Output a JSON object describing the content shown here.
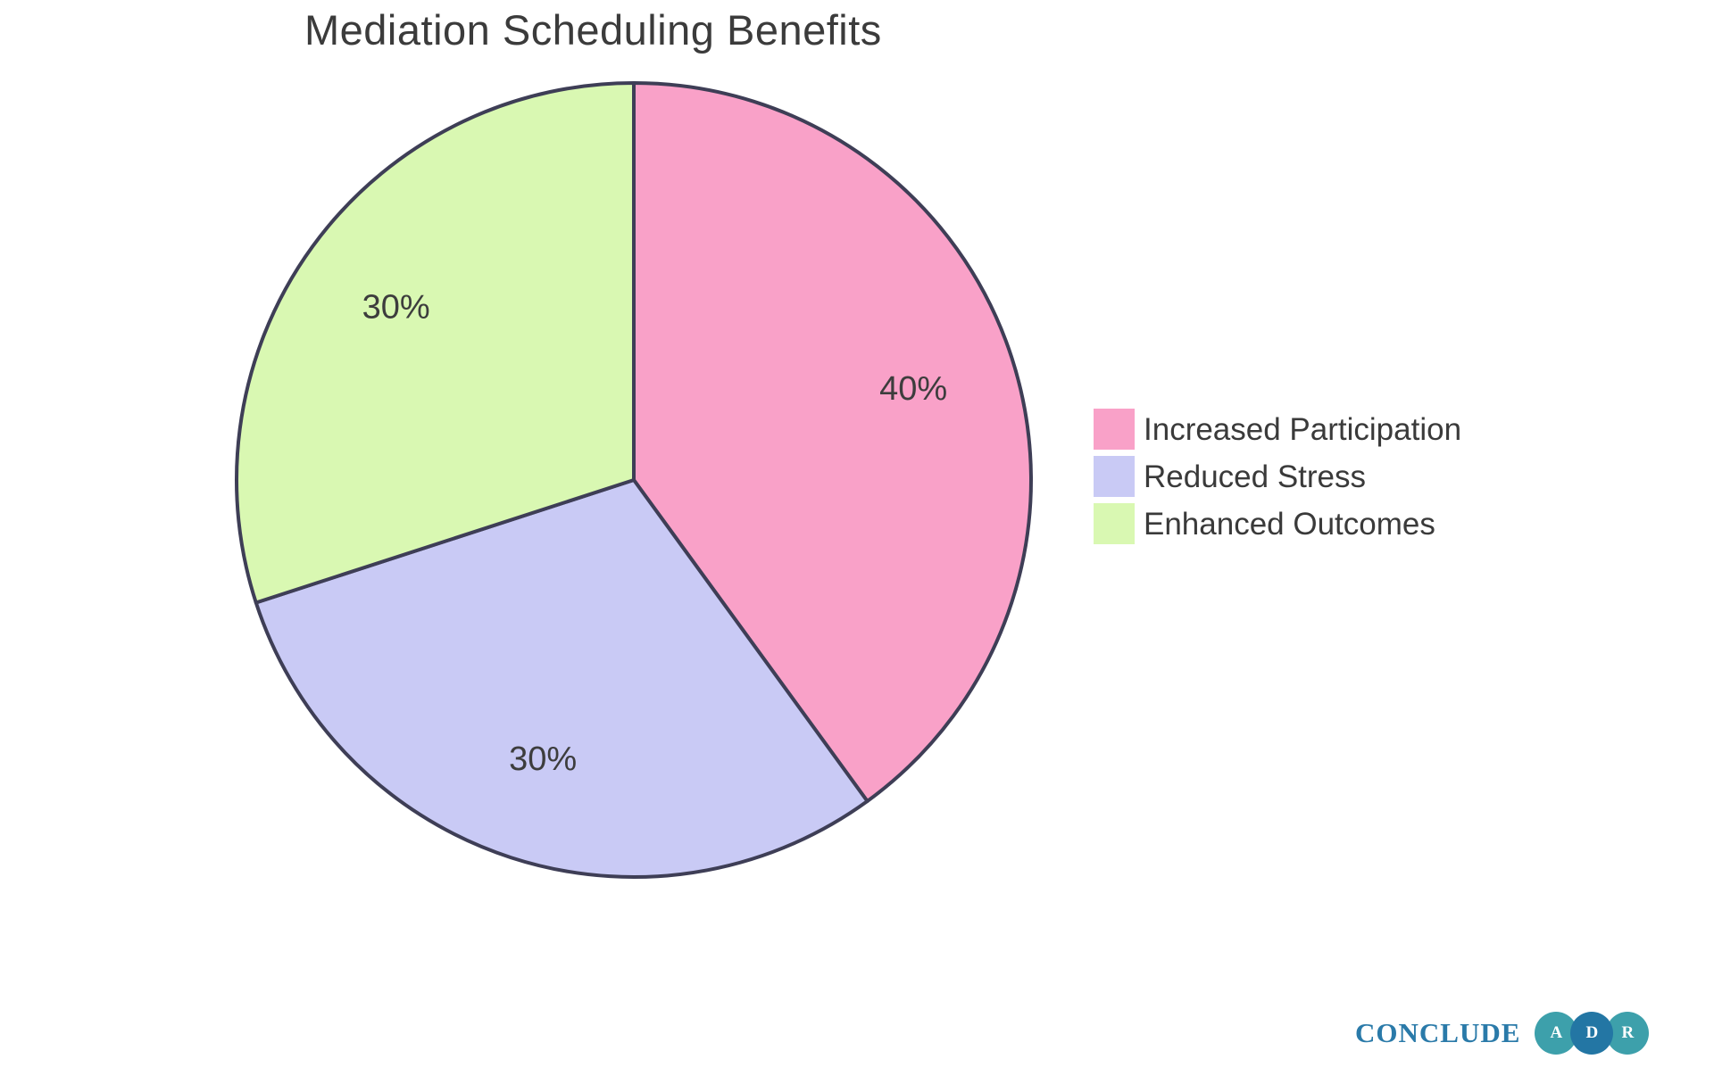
{
  "title": {
    "text": "Mediation Scheduling Benefits",
    "color": "#3b3b3b"
  },
  "chart_data": {
    "type": "pie",
    "title": "Mediation Scheduling Benefits",
    "labels": [
      "Increased Participation",
      "Reduced Stress",
      "Enhanced Outcomes"
    ],
    "values": [
      40,
      30,
      30
    ],
    "unit": "percent",
    "slice_text": [
      "40%",
      "30%",
      "30%"
    ],
    "colors": [
      "#F9A1C8",
      "#C9CAF5",
      "#D9F8B2"
    ],
    "slice_border_color": "#3E3E56",
    "slice_border_width": 4,
    "start_angle_deg": 0,
    "direction": "clockwise",
    "label_color": "#3d3d3d",
    "label_radius_fraction": 0.74,
    "legend_position": "right"
  },
  "legend": {
    "text_color": "#3a3a3a",
    "items": [
      {
        "label": "Increased Participation",
        "color": "#F9A1C8"
      },
      {
        "label": "Reduced Stress",
        "color": "#C9CAF5"
      },
      {
        "label": "Enhanced Outcomes",
        "color": "#D9F8B2"
      }
    ]
  },
  "branding": {
    "wordmark": "CONCLUDE",
    "wordmark_color": "#2a7aa9",
    "badge_letter_color": "#ffffff",
    "badge": [
      {
        "letter": "A",
        "color": "#3DA0AB"
      },
      {
        "letter": "D",
        "color": "#2376A4"
      },
      {
        "letter": "R",
        "color": "#3DA0AB"
      }
    ]
  }
}
